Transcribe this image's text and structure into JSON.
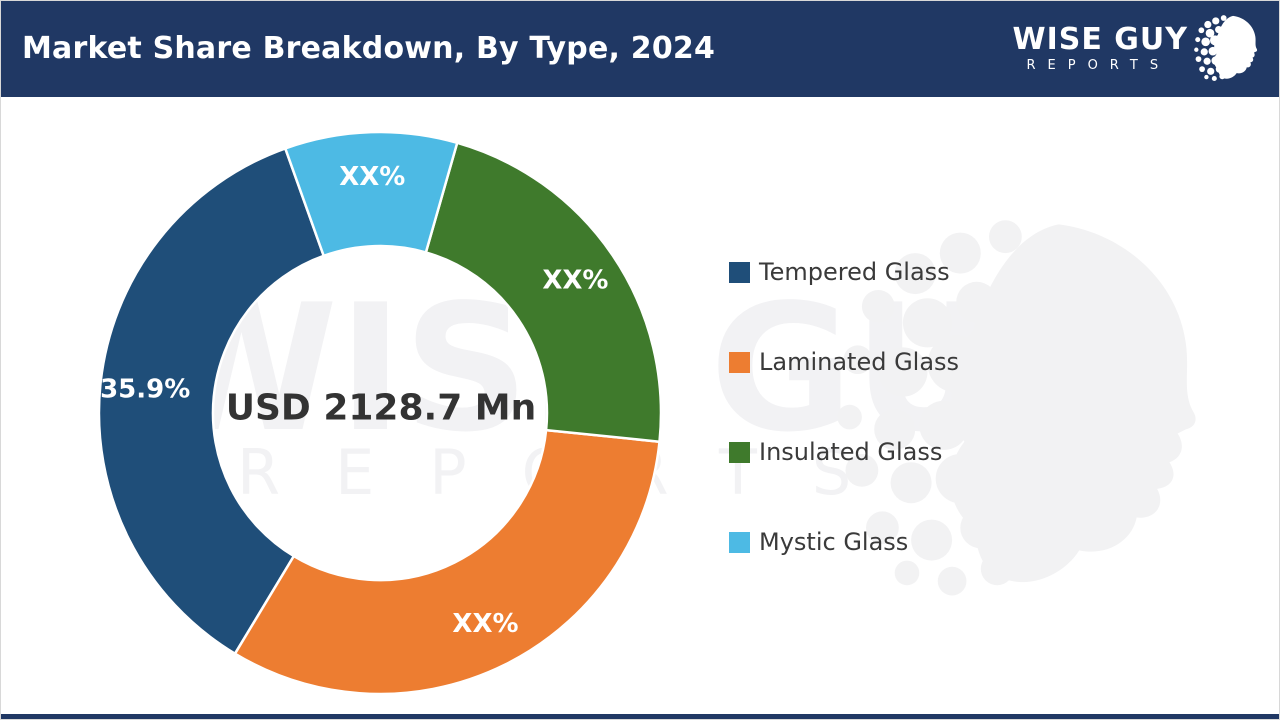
{
  "header": {
    "title": "Market Share Breakdown, By Type, 2024",
    "bg_color": "#203864",
    "logo": {
      "line1": "WISE GUY",
      "line2": "REPORTS"
    }
  },
  "watermark": {
    "line1": "WISE GUY",
    "line2": "REPORTS"
  },
  "chart_data": {
    "type": "pie",
    "subtype": "donut",
    "title": "Market Share Breakdown, By Type, 2024",
    "center_label": "USD 2128.7 Mn",
    "start_angle_deg": 109.7,
    "direction": "counterclockwise",
    "inner_radius_ratio": 0.595,
    "legend_position": "right",
    "slices": [
      {
        "name": "Tempered Glass",
        "value_pct": 35.9,
        "label": "35.9%",
        "color": "#1F4E79"
      },
      {
        "name": "Laminated Glass",
        "value_pct": 32.0,
        "label": "XX%",
        "color": "#ED7D31"
      },
      {
        "name": "Insulated Glass",
        "value_pct": 22.2,
        "label": "XX%",
        "color": "#3F7A2C"
      },
      {
        "name": "Mystic Glass",
        "value_pct": 9.9,
        "label": "XX%",
        "color": "#4DBAE4"
      }
    ],
    "colors": {
      "slice_label_text": "#ffffff",
      "center_text": "#333333",
      "legend_text": "#3a3a3a",
      "watermark": "#f2f2f4"
    }
  }
}
